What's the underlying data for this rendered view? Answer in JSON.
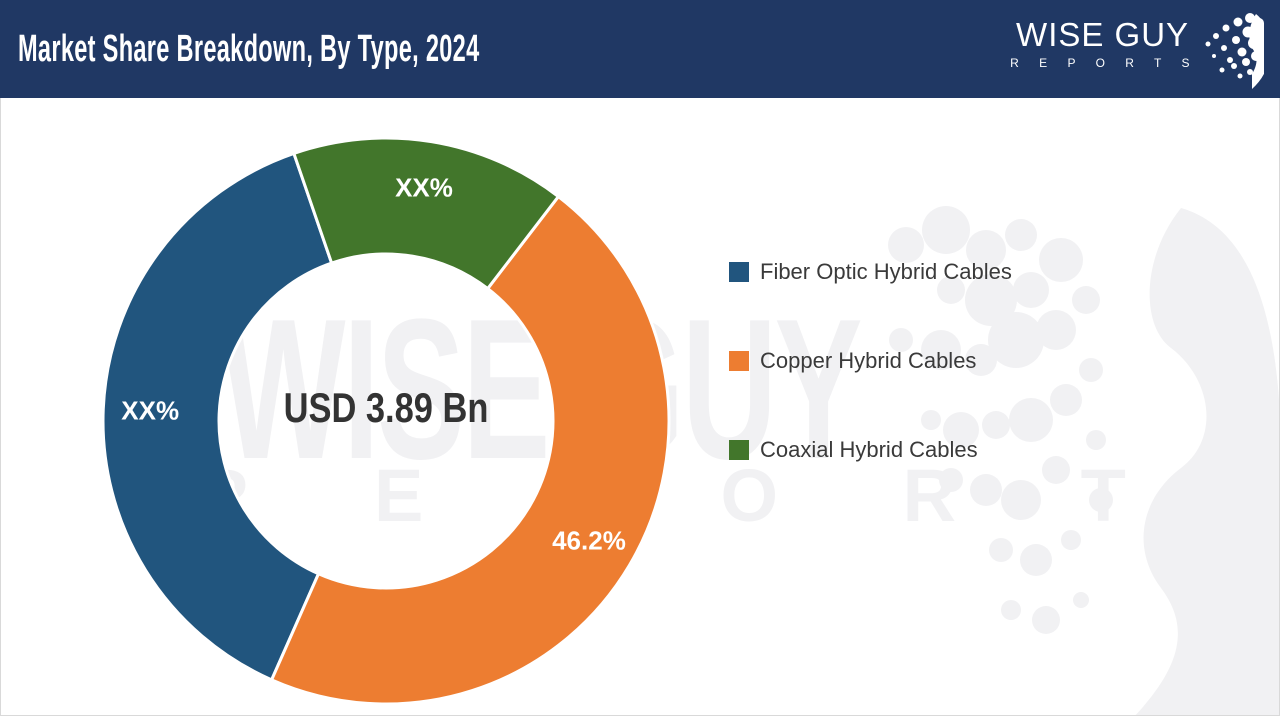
{
  "header": {
    "title": "Market Share Breakdown, By Type, 2024",
    "logo": {
      "wordmark": "WISE GUY",
      "subtext": "R E P O R T S"
    }
  },
  "watermark": {
    "line1": "WISE GUY",
    "line2": "R E P O R T S"
  },
  "chart_data": {
    "type": "pie",
    "subtype": "donut",
    "title": "Market Share Breakdown, By Type, 2024",
    "center_label": "USD 3.89 Bn",
    "start_angle_deg": 109,
    "direction": "counterclockwise",
    "legend_position": "right",
    "segments": [
      {
        "name": "Fiber Optic Hybrid Cables",
        "label": "XX%",
        "value_pct": 38.1,
        "color": "#21557E"
      },
      {
        "name": "Copper Hybrid Cables",
        "label": "46.2%",
        "value_pct": 46.2,
        "color": "#ED7D31"
      },
      {
        "name": "Coaxial Hybrid Cables",
        "label": "XX%",
        "value_pct": 15.7,
        "color": "#42762B"
      }
    ]
  },
  "colors": {
    "header_bg": "#203864",
    "title_text": "#FFFFFF",
    "center_text": "#333333",
    "legend_text": "#3A3A3A",
    "watermark": "#F1F1F3",
    "frame_border": "#D9D9D9",
    "segment_gap": "#FFFFFF"
  }
}
